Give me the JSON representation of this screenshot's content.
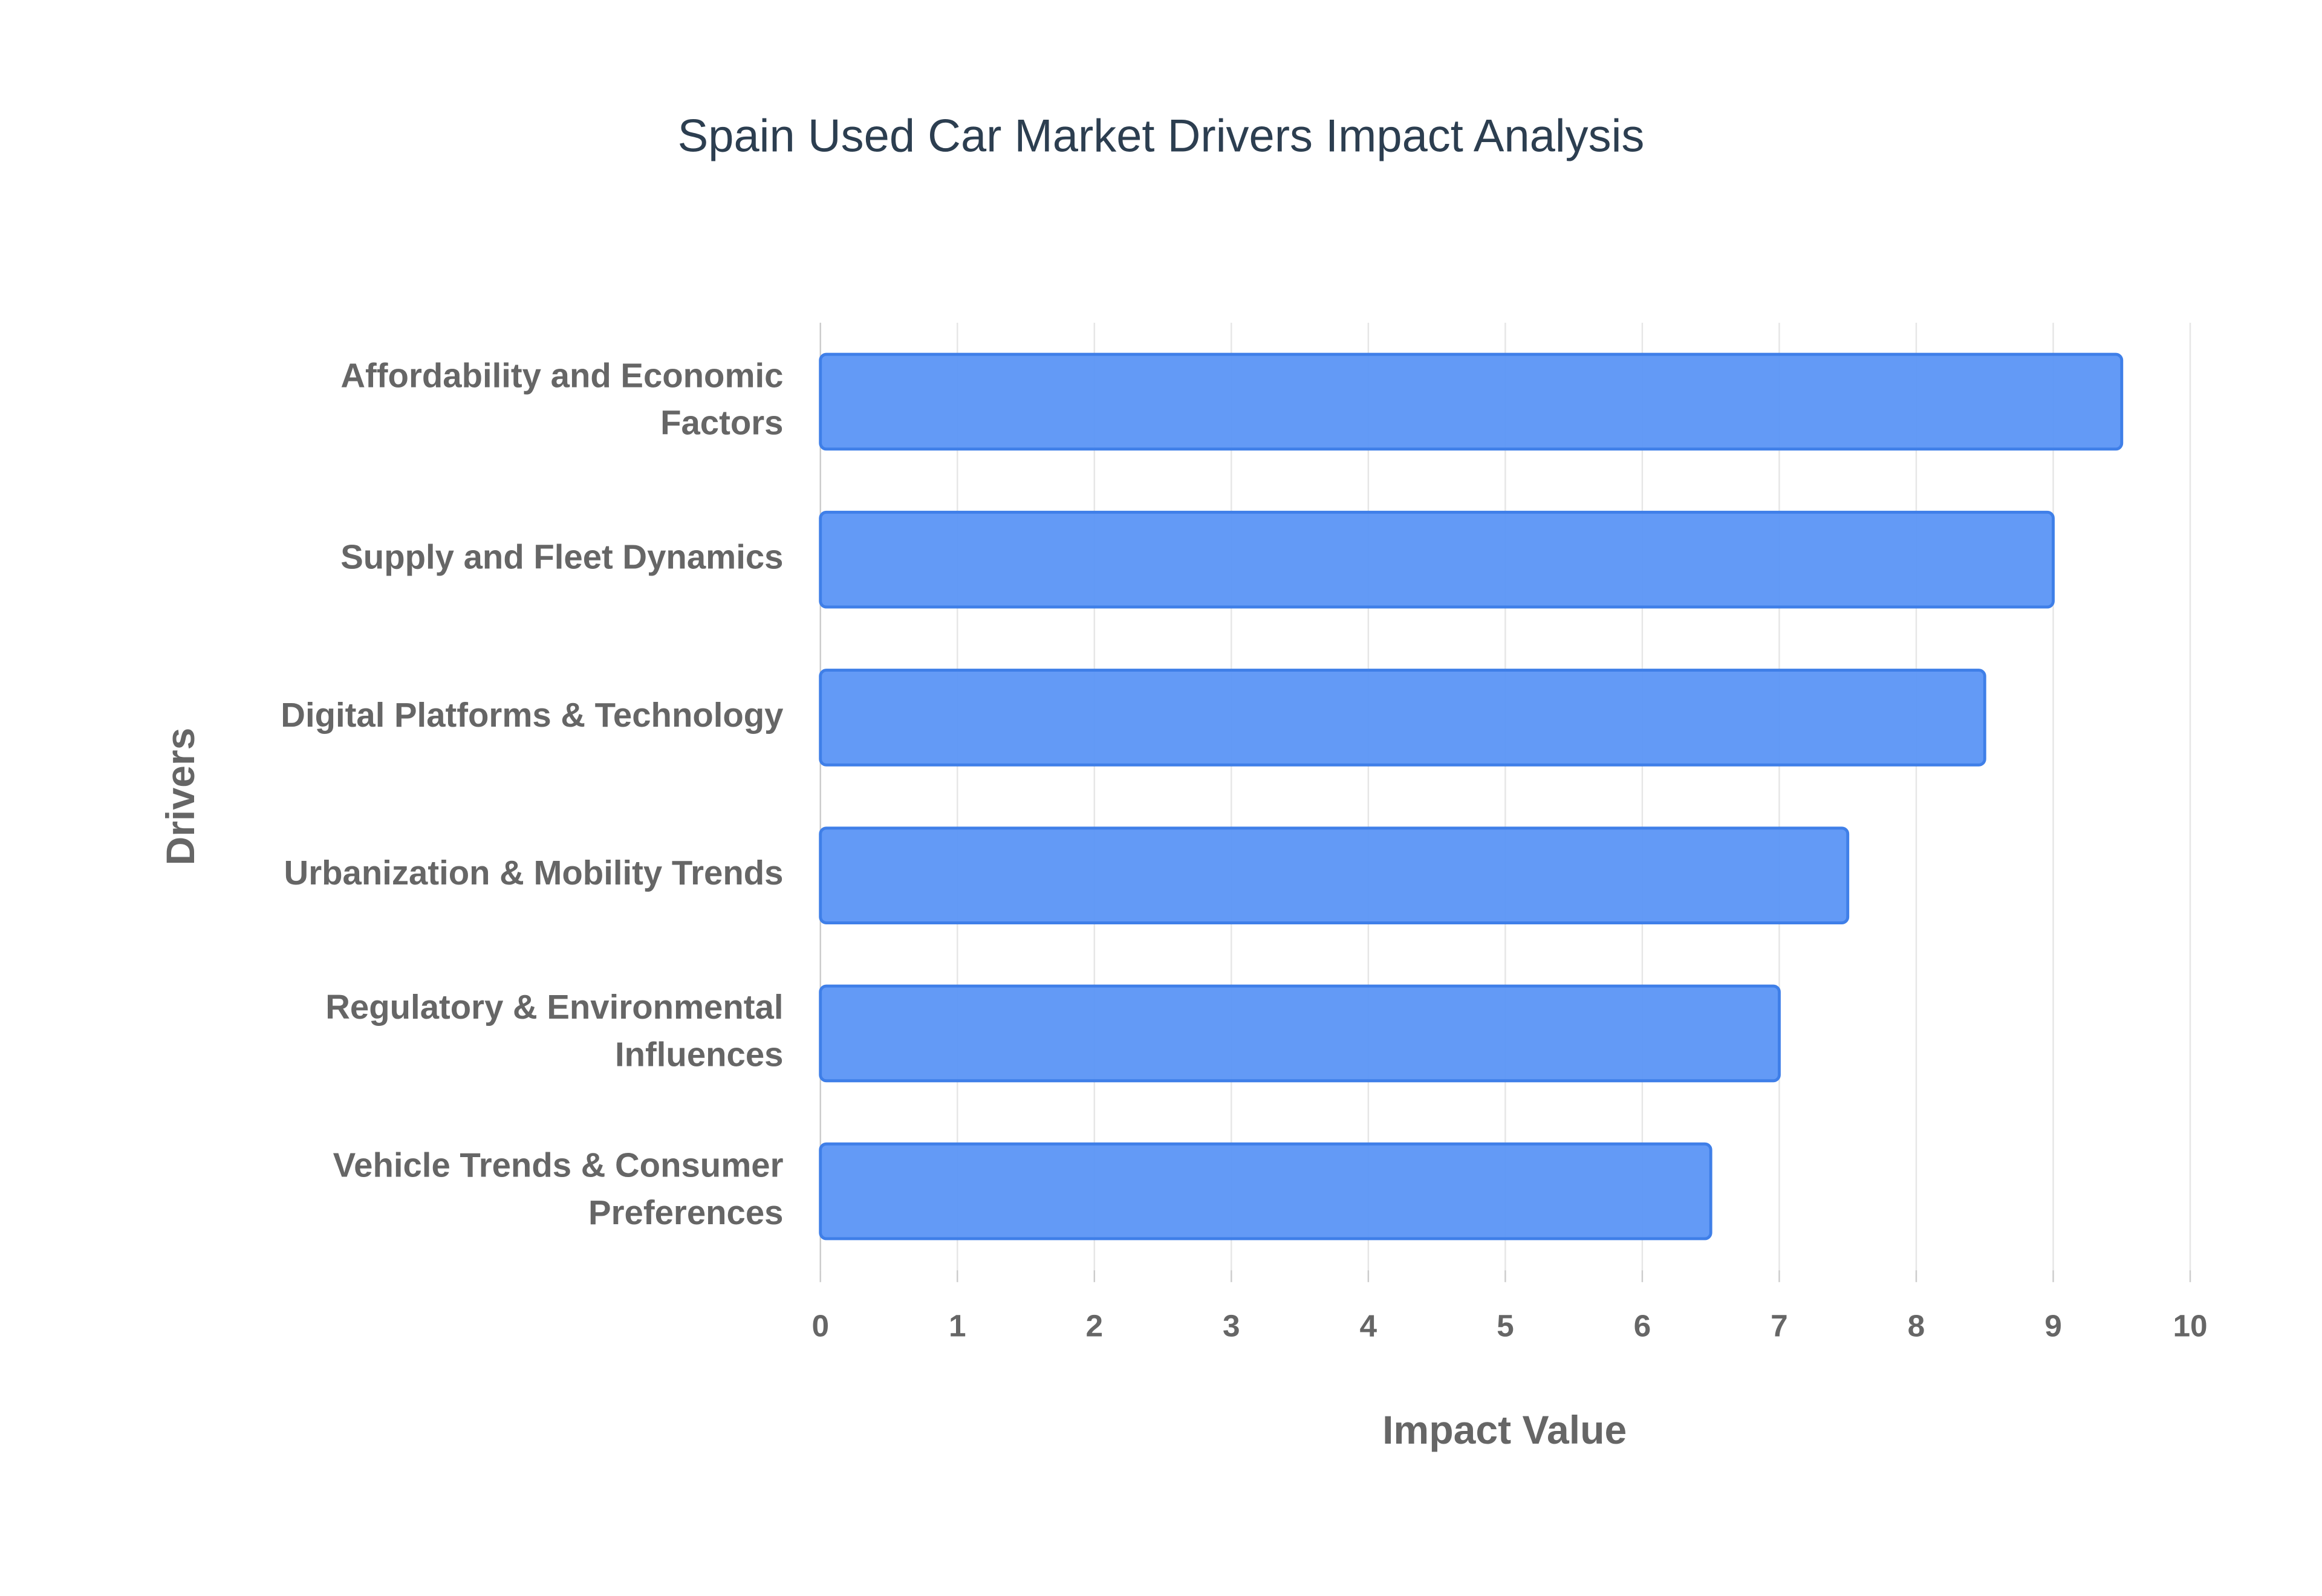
{
  "chart_data": {
    "type": "bar",
    "orientation": "horizontal",
    "title": "Spain Used Car Market Drivers Impact Analysis",
    "x_label": "Impact Value",
    "y_label": "Drivers",
    "categories": [
      "Affordability and Economic Factors",
      "Supply and Fleet Dynamics",
      "Digital Platforms & Technology",
      "Urbanization & Mobility Trends",
      "Regulatory & Environmental Influences",
      "Vehicle Trends & Consumer Preferences"
    ],
    "values": [
      9.5,
      9,
      8.5,
      7.5,
      7,
      6.5
    ],
    "color": "#5b95f5",
    "xlim": [
      0,
      10
    ],
    "xticks": [
      0,
      1,
      2,
      3,
      4,
      5,
      6,
      7,
      8,
      9,
      10
    ],
    "grid": true
  }
}
